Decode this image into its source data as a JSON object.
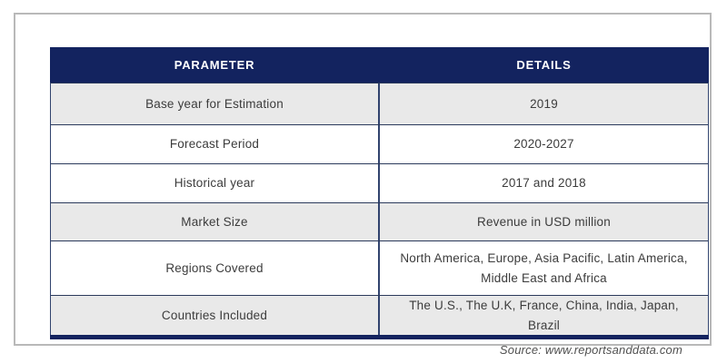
{
  "table": {
    "headers": {
      "parameter": "PARAMETER",
      "details": "DETAILS"
    },
    "rows": [
      {
        "parameter": "Base year for Estimation",
        "details": "2019",
        "shaded": true
      },
      {
        "parameter": "Forecast Period",
        "details": "2020-2027",
        "shaded": false
      },
      {
        "parameter": "Historical year",
        "details": "2017 and 2018",
        "shaded": false
      },
      {
        "parameter": "Market Size",
        "details": "Revenue in USD million",
        "shaded": true
      },
      {
        "parameter": "Regions Covered",
        "details": "North America, Europe, Asia Pacific, Latin America, Middle East and Africa",
        "shaded": false
      },
      {
        "parameter": "Countries Included",
        "details": "The U.S., The  U.K, France, China, India, Japan, Brazil",
        "shaded": true
      }
    ]
  },
  "footer": {
    "source_note": "Source: www.reportsanddata.com"
  },
  "colors": {
    "header_navy": "#13235f",
    "row_shaded": "#e9e9e9",
    "row_plain": "#ffffff",
    "border_dark": "#2b3a5c",
    "divider_blue": "#31436e",
    "frame_gray": "#b9b9b9",
    "body_text": "#3c3c3c",
    "source_text": "#4f4f4f"
  }
}
